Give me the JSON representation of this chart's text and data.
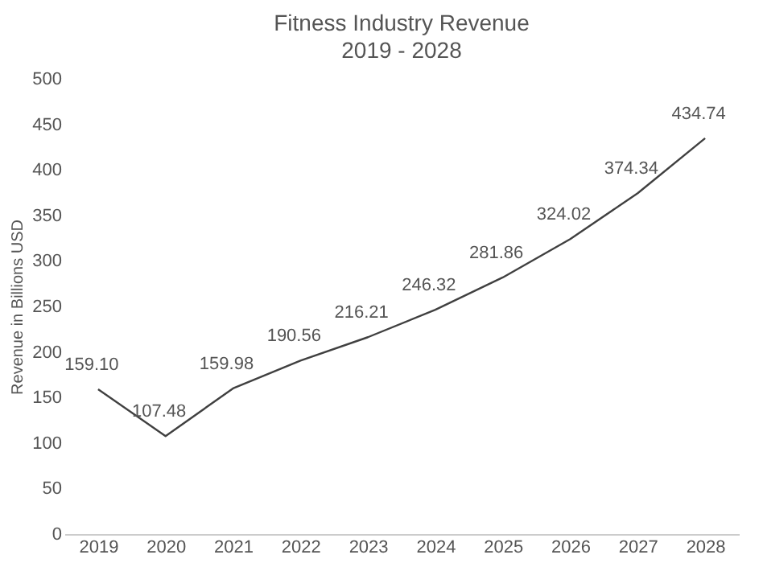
{
  "chart_data": {
    "type": "line",
    "title": "Fitness Industry Revenue",
    "subtitle": "2019 - 2028",
    "ylabel": "Revenue in Billions USD",
    "categories": [
      "2019",
      "2020",
      "2021",
      "2022",
      "2023",
      "2024",
      "2025",
      "2026",
      "2027",
      "2028"
    ],
    "series": [
      {
        "color": "#404040",
        "values": [
          159.1,
          107.48,
          159.98,
          190.56,
          216.21,
          246.32,
          281.86,
          324.02,
          374.34,
          434.74
        ],
        "value_labels": [
          "159.10",
          "107.48",
          "159.98",
          "190.56",
          "216.21",
          "246.32",
          "281.86",
          "324.02",
          "374.34",
          "434.74"
        ]
      }
    ],
    "ylim": [
      0,
      500
    ],
    "yticks": [
      0,
      50,
      100,
      150,
      200,
      250,
      300,
      350,
      400,
      450,
      500
    ],
    "grid": false,
    "marker": "none",
    "line_style": "solid"
  }
}
